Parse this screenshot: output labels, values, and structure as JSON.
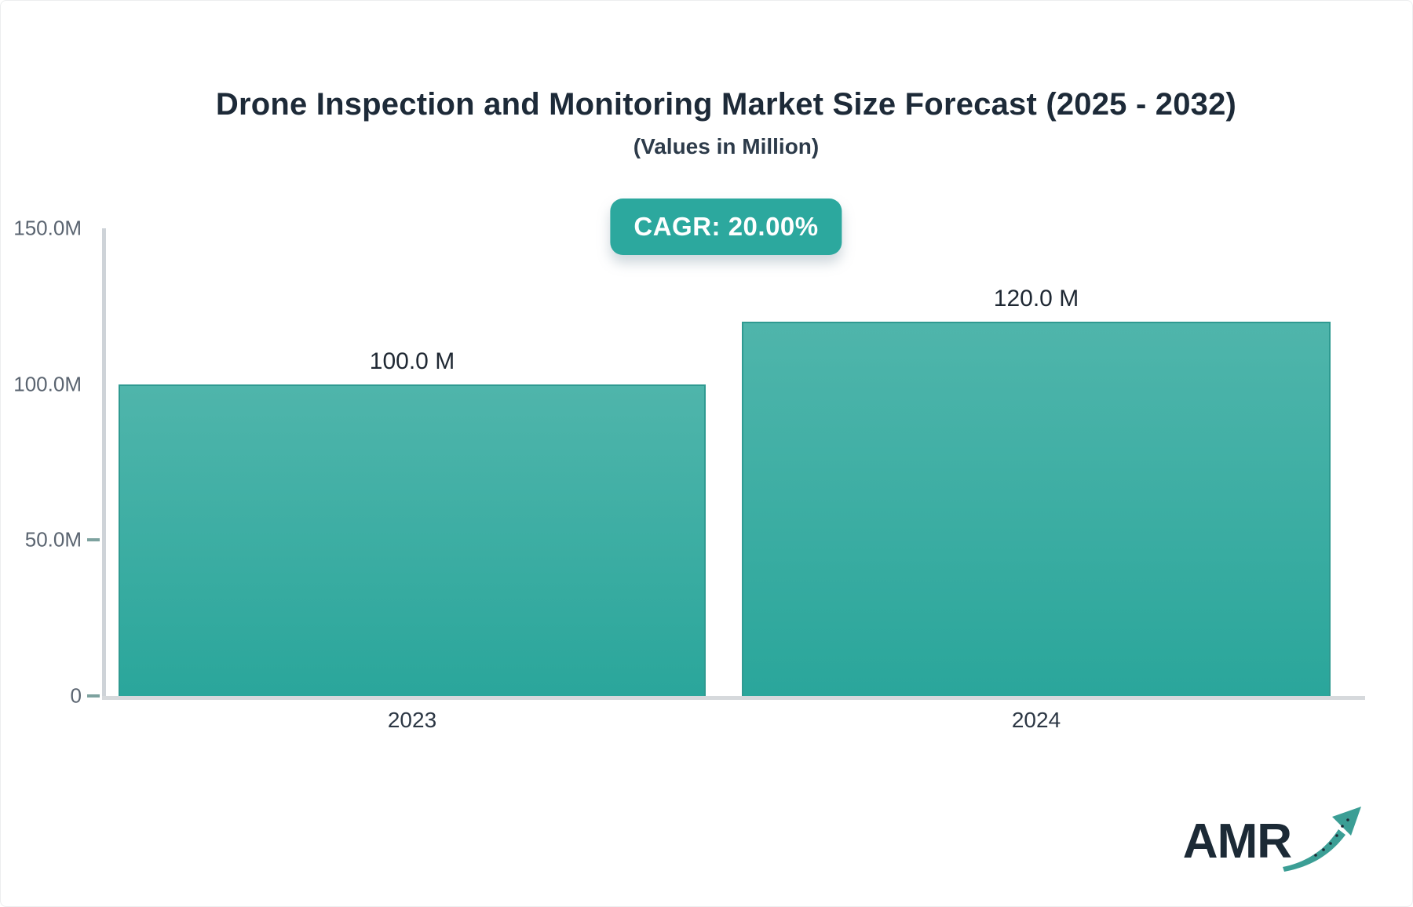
{
  "header": {
    "title": "Drone Inspection and Monitoring Market Size Forecast (2025 - 2032)",
    "subtitle": "(Values in Million)",
    "cagr_label": "CAGR: 20.00%",
    "cagr_bg": "#2ca89e"
  },
  "chart_data": {
    "type": "bar",
    "title": "Drone Inspection and Monitoring Market Size Forecast (2025 - 2032)",
    "subtitle": "(Values in Million)",
    "categories": [
      "2023",
      "2024"
    ],
    "values": [
      100.0,
      120.0
    ],
    "value_labels": [
      "100.0 M",
      "120.0 M"
    ],
    "cagr": "20.00%",
    "ylim": [
      0,
      150
    ],
    "yticks": [
      {
        "label": "150.0M",
        "value": 150,
        "dash": false
      },
      {
        "label": "100.0M",
        "value": 100,
        "dash": false
      },
      {
        "label": "50.0M",
        "value": 50,
        "dash": true
      },
      {
        "label": "0",
        "value": 0,
        "dash": true
      }
    ],
    "grid": false,
    "legend": "none",
    "bar_color_top": "#4fb5ab",
    "bar_color_bottom": "#2aa69b",
    "bar_border_color": "#2f9a91",
    "axis_color": "#ced3d8",
    "tick_label_color": "#5a6470"
  },
  "logo": {
    "text": "AMR",
    "text_color": "#1c2a36",
    "arrow_color": "#3b9e95"
  }
}
